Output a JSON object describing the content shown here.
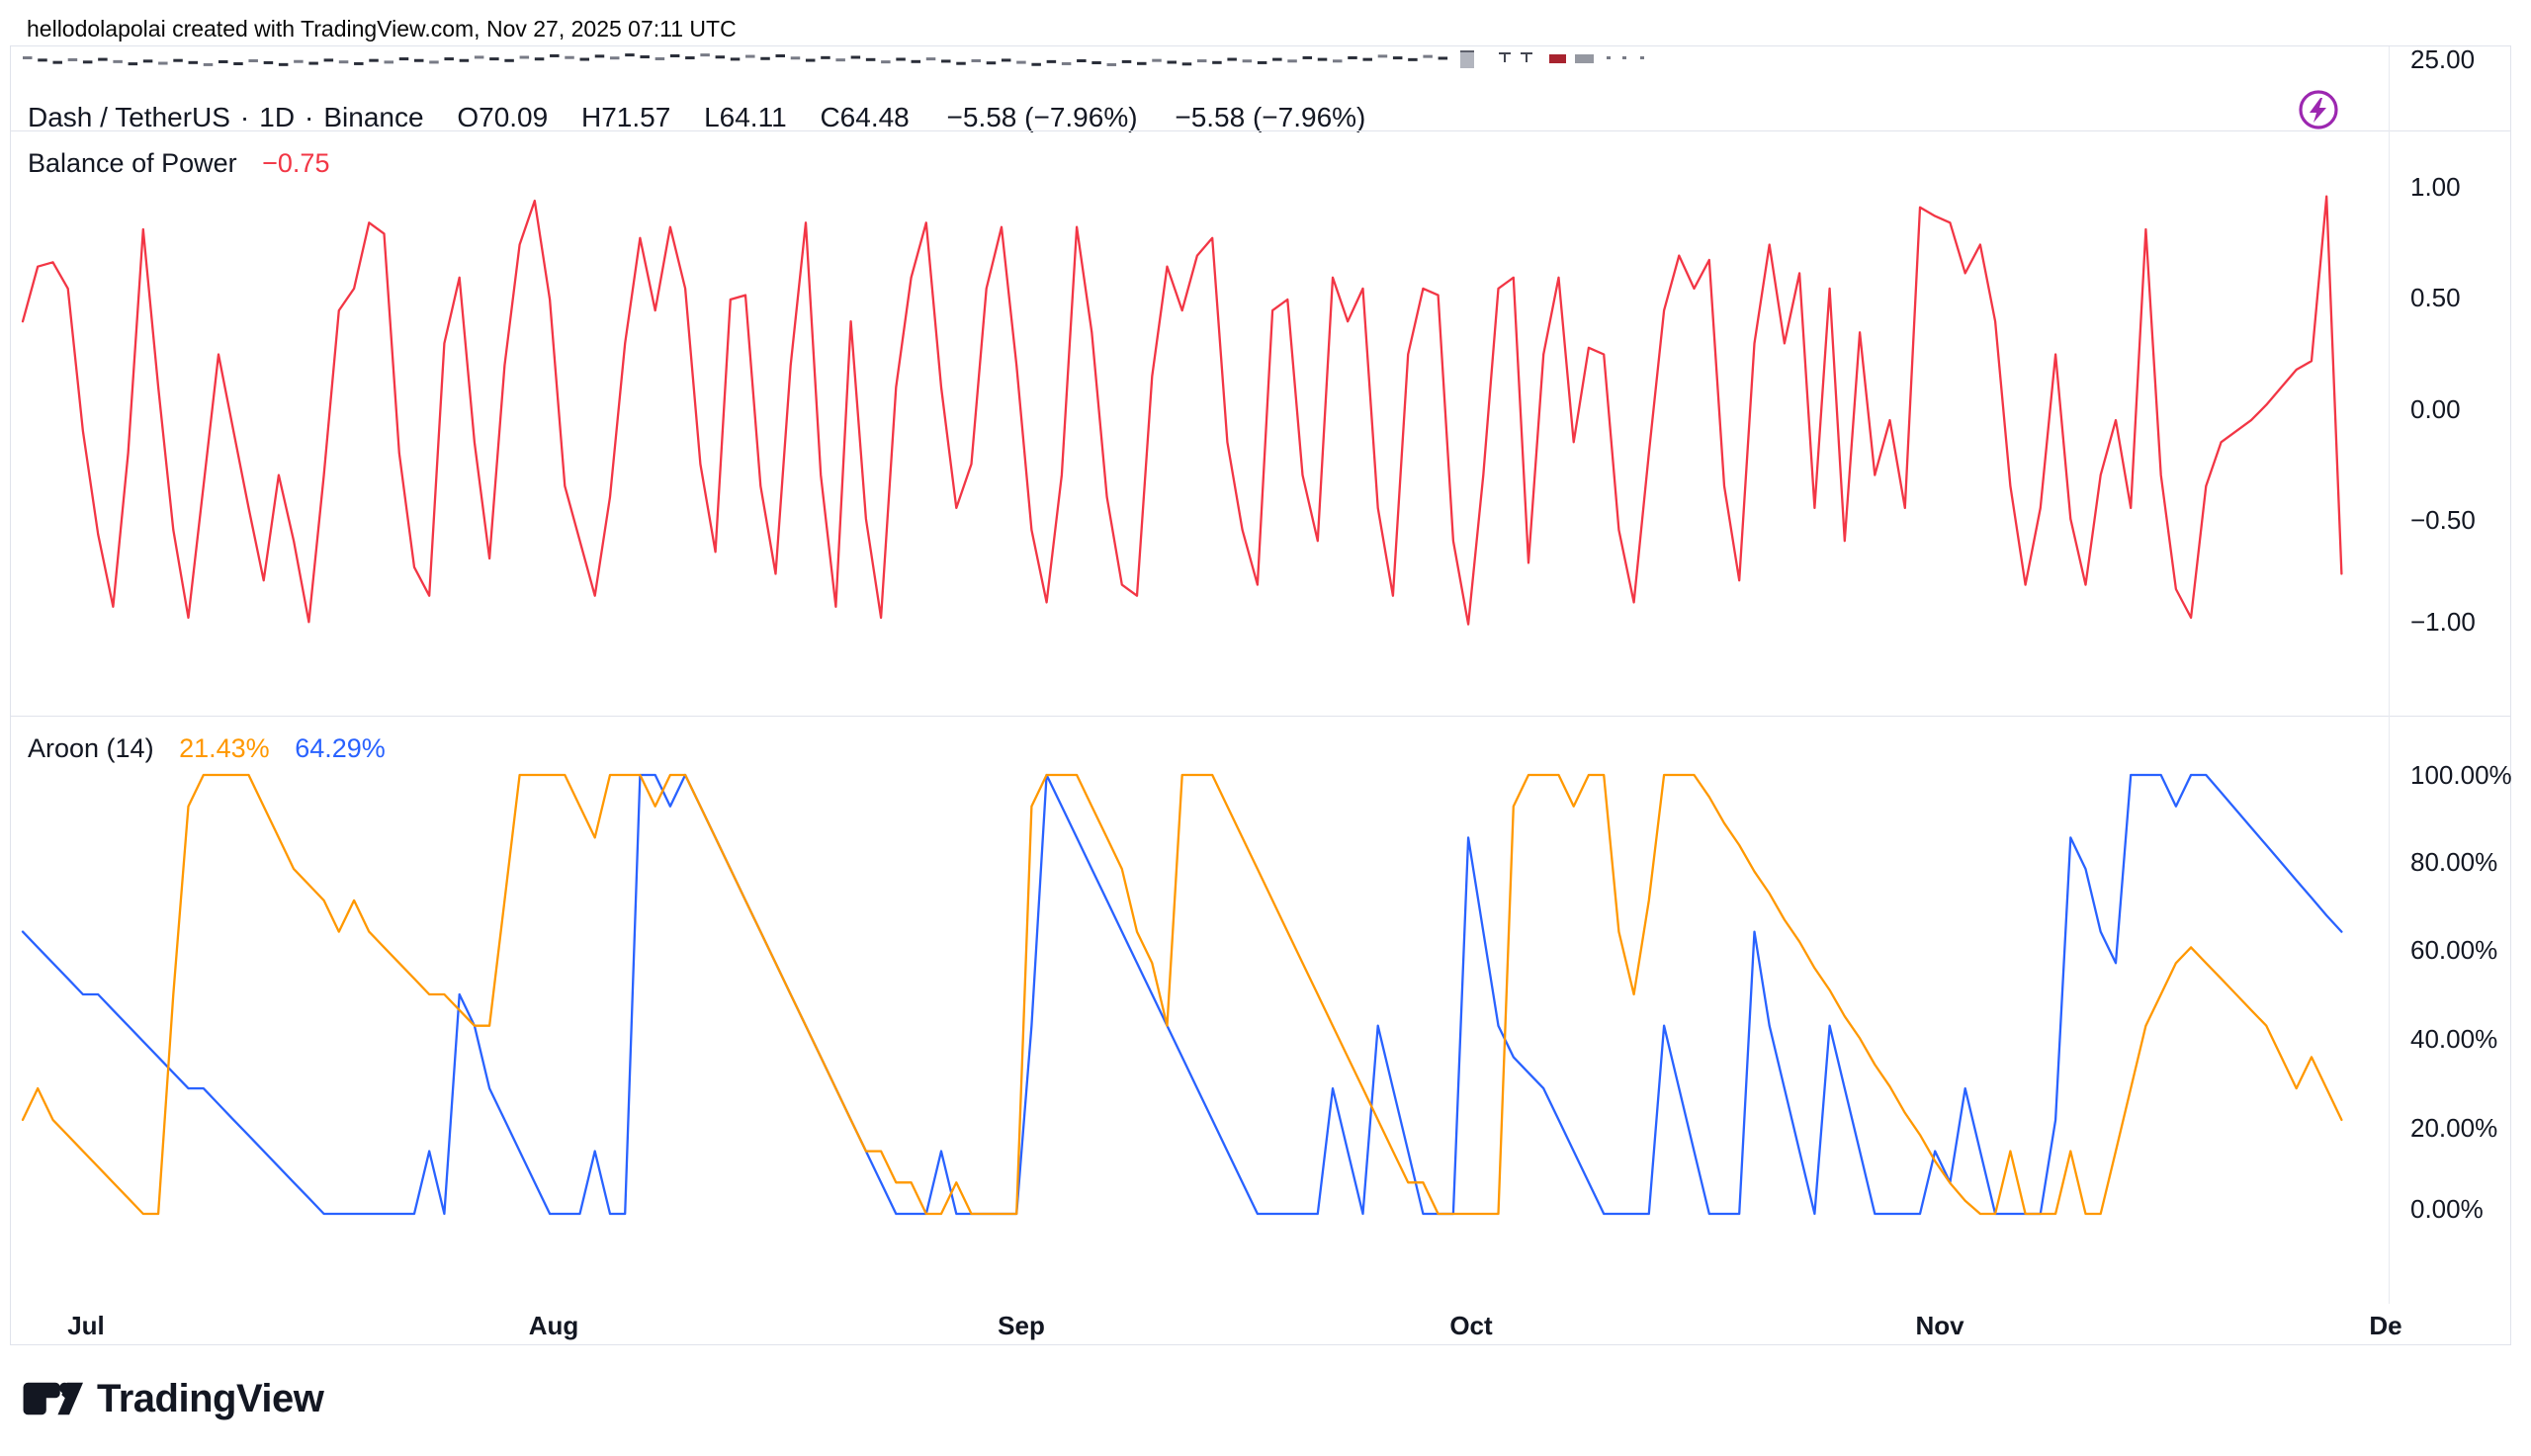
{
  "attribution": "hellodolapolai created with TradingView.com, Nov 27, 2025 07:11 UTC",
  "header": {
    "symbol": "Dash / TetherUS",
    "separator": "·",
    "interval": "1D",
    "exchange": "Binance",
    "ohlc": {
      "o_label": "O",
      "o": "70.09",
      "h_label": "H",
      "h": "71.57",
      "l_label": "L",
      "l": "64.11",
      "c_label": "C",
      "c": "64.48"
    },
    "change": "−5.58 (−7.96%)",
    "change_secondary": "−5.58 (−7.96%)",
    "last_price_label": "25.00"
  },
  "panes": {
    "bop": {
      "title": "Balance of Power",
      "value": "−0.75",
      "value_color": "#F23645",
      "axis_labels": [
        "1.00",
        "0.50",
        "0.00",
        "−0.50",
        "−1.00"
      ]
    },
    "aroon": {
      "title": "Aroon (14)",
      "up_value": "21.43%",
      "down_value": "64.29%",
      "up_color": "#FF9800",
      "down_color": "#2962FF",
      "axis_labels": [
        "100.00%",
        "80.00%",
        "60.00%",
        "40.00%",
        "20.00%",
        "0.00%"
      ]
    }
  },
  "time_axis": {
    "labels": [
      "Jul",
      "Aug",
      "Sep",
      "Oct",
      "Nov",
      "De"
    ]
  },
  "icons": {
    "flash_icon_color": "#9C27B0"
  },
  "logo_text": "TradingView",
  "chart_data": [
    {
      "type": "line",
      "title": "Balance of Power",
      "x_range": "late Jun 2025 – Nov 27 2025, daily bars",
      "ylim": [
        -1,
        1
      ],
      "yticks": [
        1.0,
        0.5,
        0.0,
        -0.5,
        -1.0
      ],
      "grid": false,
      "legend_position": "top-left",
      "last_value": -0.75,
      "series": [
        {
          "name": "Balance of Power",
          "color": "#F23645",
          "values": [
            0.4,
            0.65,
            0.67,
            0.55,
            -0.1,
            -0.57,
            -0.9,
            -0.2,
            0.82,
            0.1,
            -0.55,
            -0.95,
            -0.35,
            0.25,
            -0.1,
            -0.45,
            -0.78,
            -0.3,
            -0.6,
            -0.97,
            -0.3,
            0.45,
            0.55,
            0.85,
            0.8,
            -0.2,
            -0.72,
            -0.85,
            0.3,
            0.6,
            -0.15,
            -0.68,
            0.2,
            0.75,
            0.95,
            0.5,
            -0.35,
            -0.6,
            -0.85,
            -0.4,
            0.3,
            0.78,
            0.45,
            0.83,
            0.55,
            -0.25,
            -0.65,
            0.5,
            0.52,
            -0.35,
            -0.75,
            0.2,
            0.85,
            -0.3,
            -0.9,
            0.4,
            -0.5,
            -0.95,
            0.1,
            0.6,
            0.85,
            0.1,
            -0.45,
            -0.25,
            0.55,
            0.83,
            0.2,
            -0.55,
            -0.88,
            -0.3,
            0.83,
            0.35,
            -0.4,
            -0.8,
            -0.85,
            0.15,
            0.65,
            0.45,
            0.7,
            0.78,
            -0.15,
            -0.55,
            -0.8,
            0.45,
            0.5,
            -0.3,
            -0.6,
            0.6,
            0.4,
            0.55,
            -0.45,
            -0.85,
            0.25,
            0.55,
            0.52,
            -0.6,
            -0.98,
            -0.3,
            0.55,
            0.6,
            -0.7,
            0.25,
            0.6,
            -0.15,
            0.28,
            0.25,
            -0.55,
            -0.88,
            -0.2,
            0.45,
            0.7,
            0.55,
            0.68,
            -0.35,
            -0.78,
            0.3,
            0.75,
            0.3,
            0.62,
            -0.45,
            0.55,
            -0.6,
            0.35,
            -0.3,
            -0.05,
            -0.45,
            0.92,
            0.88,
            0.85,
            0.62,
            0.75,
            0.4,
            -0.35,
            -0.8,
            -0.45,
            0.25,
            -0.5,
            -0.8,
            -0.3,
            -0.05,
            -0.45,
            0.82,
            -0.3,
            -0.82,
            -0.95,
            -0.35,
            -0.15,
            -0.1,
            -0.05,
            0.02,
            0.1,
            0.18,
            0.22,
            0.97,
            -0.75
          ]
        }
      ]
    },
    {
      "type": "line",
      "title": "Aroon (14)",
      "x_range": "late Jun 2025 – Nov 27 2025, daily bars",
      "ylim": [
        0,
        100
      ],
      "yticks": [
        "100.00%",
        "80.00%",
        "60.00%",
        "40.00%",
        "20.00%",
        "0.00%"
      ],
      "grid": false,
      "legend_position": "top-left",
      "last_values": {
        "aroon_up": 21.43,
        "aroon_down": 64.29
      },
      "series": [
        {
          "name": "Aroon Up",
          "color": "#FF9800",
          "values": [
            21.43,
            28.57,
            21.43,
            17.86,
            14.29,
            10.71,
            7.14,
            3.57,
            0,
            0,
            50,
            92.86,
            100,
            100,
            100,
            100,
            92.86,
            85.71,
            78.57,
            75,
            71.43,
            64.29,
            71.43,
            64.29,
            60.71,
            57.14,
            53.57,
            50,
            50,
            46.43,
            42.86,
            42.86,
            71.43,
            100,
            100,
            100,
            100,
            92.86,
            85.71,
            100,
            100,
            100,
            92.86,
            100,
            100,
            92.86,
            85.71,
            78.57,
            71.43,
            64.29,
            57.14,
            50,
            42.86,
            35.71,
            28.57,
            21.43,
            14.29,
            14.29,
            7.14,
            7.14,
            0,
            0,
            7.14,
            0,
            0,
            0,
            0,
            92.86,
            100,
            100,
            100,
            92.86,
            85.71,
            78.57,
            64.29,
            57.14,
            42.86,
            100,
            100,
            100,
            92.86,
            85.71,
            78.57,
            71.43,
            64.29,
            57.14,
            50,
            42.86,
            35.71,
            28.57,
            21.43,
            14.29,
            7.14,
            7.14,
            0,
            0,
            0,
            0,
            0,
            92.86,
            100,
            100,
            100,
            92.86,
            100,
            100,
            64.29,
            50,
            71.43,
            100,
            100,
            100,
            95,
            89,
            84,
            78,
            73,
            67,
            62,
            56,
            51,
            45,
            40,
            34,
            29,
            23,
            18,
            12,
            7,
            3,
            0,
            0,
            14.29,
            0,
            0,
            0,
            14.29,
            0,
            0,
            14.29,
            28.57,
            42.86,
            50,
            57.14,
            60.71,
            57.14,
            53.57,
            50,
            46.43,
            42.86,
            35.71,
            28.57,
            35.71,
            28.57,
            21.43
          ]
        },
        {
          "name": "Aroon Down",
          "color": "#2962FF",
          "values": [
            64.29,
            60.71,
            57.14,
            53.57,
            50,
            50,
            46.43,
            42.86,
            39.29,
            35.71,
            32.14,
            28.57,
            28.57,
            25,
            21.43,
            17.86,
            14.29,
            10.71,
            7.14,
            3.57,
            0,
            0,
            0,
            0,
            0,
            0,
            0,
            14.29,
            0,
            50,
            42.86,
            28.57,
            21.43,
            14.29,
            7.14,
            0,
            0,
            0,
            14.29,
            0,
            0,
            100,
            100,
            92.86,
            100,
            92.86,
            85.71,
            78.57,
            71.43,
            64.29,
            57.14,
            50,
            42.86,
            35.71,
            28.57,
            21.43,
            14.29,
            7.14,
            0,
            0,
            0,
            14.29,
            0,
            0,
            0,
            0,
            0,
            42.86,
            100,
            92.86,
            85.71,
            78.57,
            71.43,
            64.29,
            57.14,
            50,
            42.86,
            35.71,
            28.57,
            21.43,
            14.29,
            7.14,
            0,
            0,
            0,
            0,
            0,
            28.57,
            14.29,
            0,
            42.86,
            28.57,
            14.29,
            0,
            0,
            0,
            85.71,
            64.29,
            42.86,
            35.71,
            32.14,
            28.57,
            21.43,
            14.29,
            7.14,
            0,
            0,
            0,
            0,
            42.86,
            28.57,
            14.29,
            0,
            0,
            0,
            64.29,
            42.86,
            28.57,
            14.29,
            0,
            42.86,
            28.57,
            14.29,
            0,
            0,
            0,
            0,
            14.29,
            7.14,
            28.57,
            14.29,
            0,
            0,
            0,
            0,
            21.43,
            85.71,
            78.57,
            64.29,
            57.14,
            100,
            100,
            100,
            92.86,
            100,
            100,
            96,
            92,
            88,
            84,
            80,
            76,
            72,
            68,
            64.29
          ]
        }
      ]
    },
    {
      "type": "candlestick",
      "title": "Dash / TetherUS price pane (fully compressed)",
      "note": "candles rendered as a flat dashed strip at top; only visible scale value",
      "visible_price_label": "25.00"
    }
  ]
}
